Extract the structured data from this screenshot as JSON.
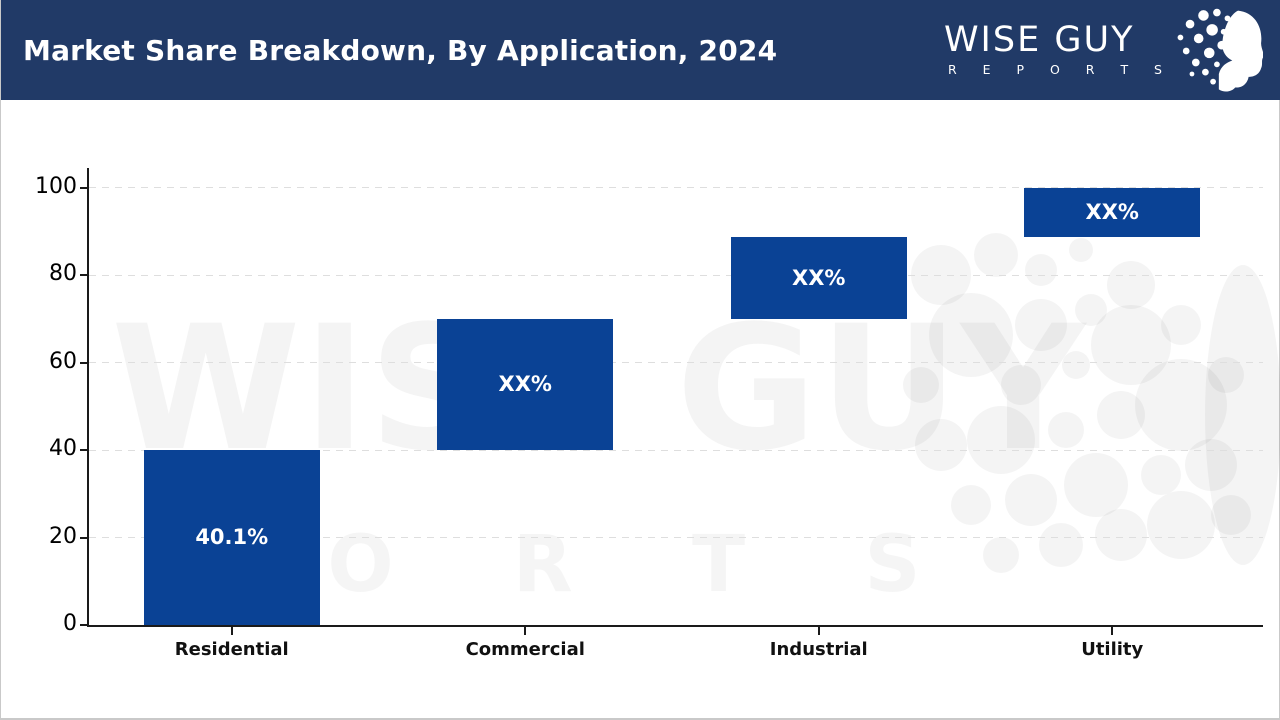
{
  "header": {
    "title": "Market Share Breakdown, By Application, 2024",
    "brand": {
      "name": "WISE GUY",
      "subtitle": "R E P O R T S"
    }
  },
  "watermark": {
    "line1": "WISE GUY",
    "line2": "P O R T S"
  },
  "chart_data": {
    "type": "bar",
    "subtype": "floating-waterfall",
    "title": "Market Share Breakdown, By Application, 2024",
    "categories": [
      "Residential",
      "Commercial",
      "Industrial",
      "Utility"
    ],
    "segments": [
      {
        "category": "Residential",
        "start": 0,
        "end": 40.1,
        "label": "40.1%"
      },
      {
        "category": "Commercial",
        "start": 40.1,
        "end": 70.0,
        "label": "XX%"
      },
      {
        "category": "Industrial",
        "start": 70.0,
        "end": 88.8,
        "label": "XX%"
      },
      {
        "category": "Utility",
        "start": 88.8,
        "end": 100.0,
        "label": "XX%"
      }
    ],
    "ylim": [
      0,
      100
    ],
    "yticks": [
      0,
      20,
      40,
      60,
      80,
      100
    ],
    "xlabel": "",
    "ylabel": "",
    "grid": "horizontal-dashed",
    "legend": "none",
    "colors": {
      "bar": "#0a4295",
      "bar_label": "#ffffff",
      "axis": "#1a1a1a",
      "gridline": "#dedede",
      "header_bg": "#213a67",
      "tick_label": "#000000"
    }
  }
}
